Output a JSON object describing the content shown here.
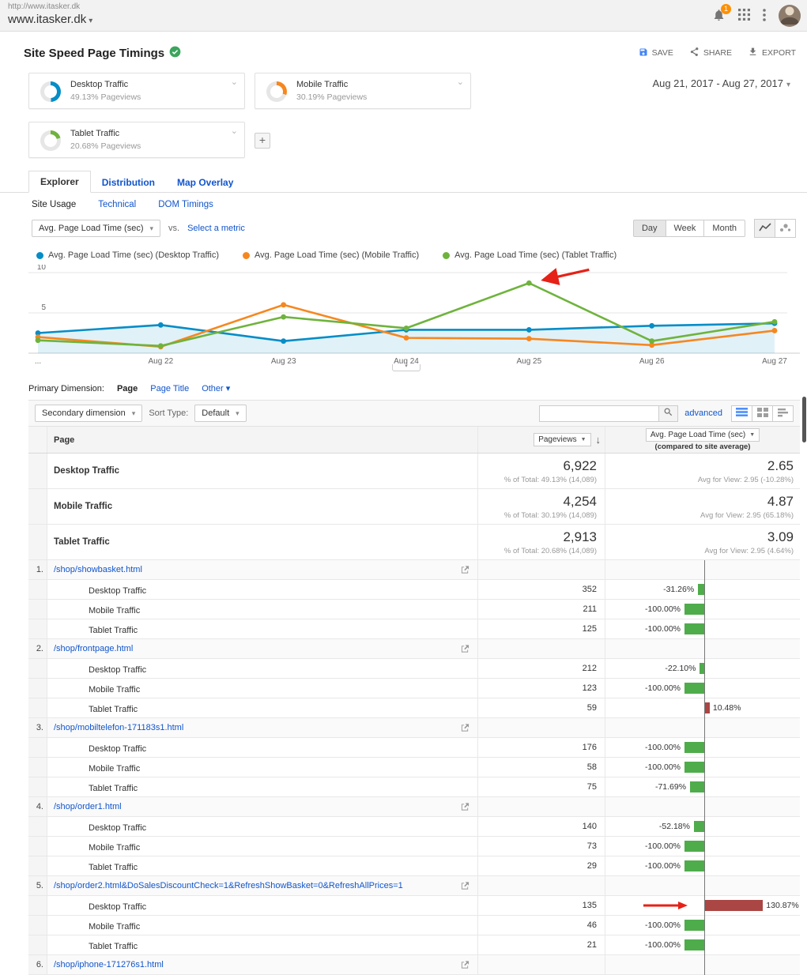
{
  "colors": {
    "desktop": "#058dc7",
    "mobile": "#f6871f",
    "tablet": "#6fb33d",
    "bar_negative": "#4fac4b",
    "bar_positive": "#aa4643",
    "annotation": "#e62117",
    "badge": "#ff8f00",
    "link": "#1155cc"
  },
  "topbar": {
    "url": "http://www.itasker.dk",
    "title": "www.itasker.dk",
    "badge_count": "1"
  },
  "report_header": {
    "title": "Site Speed Page Timings",
    "save": "SAVE",
    "share": "SHARE",
    "export": "EXPORT",
    "date_range": "Aug 21, 2017 - Aug 27, 2017"
  },
  "segments": [
    {
      "name": "Desktop Traffic",
      "detail": "49.13% Pageviews",
      "pct": 49.13
    },
    {
      "name": "Mobile Traffic",
      "detail": "30.19% Pageviews",
      "pct": 30.19
    },
    {
      "name": "Tablet Traffic",
      "detail": "20.68% Pageviews",
      "pct": 20.68
    }
  ],
  "tabs": [
    {
      "label": "Explorer",
      "active": true
    },
    {
      "label": "Distribution",
      "active": false
    },
    {
      "label": "Map Overlay",
      "active": false
    }
  ],
  "subtabs": [
    {
      "label": "Site Usage",
      "active": true
    },
    {
      "label": "Technical",
      "active": false
    },
    {
      "label": "DOM Timings",
      "active": false
    }
  ],
  "metric_bar": {
    "metric_selector": "Avg. Page Load Time (sec)",
    "vs_label": "vs.",
    "select_metric": "Select a metric",
    "granularity": [
      "Day",
      "Week",
      "Month"
    ],
    "active_granularity": "Day"
  },
  "chart_data": {
    "type": "line",
    "x": [
      "Aug 21",
      "Aug 22",
      "Aug 23",
      "Aug 24",
      "Aug 25",
      "Aug 26",
      "Aug 27"
    ],
    "x_tick_labels": [
      "...",
      "Aug 22",
      "Aug 23",
      "Aug 24",
      "Aug 25",
      "Aug 26",
      "Aug 27"
    ],
    "ylim": [
      0,
      10
    ],
    "yticks": [
      5,
      10
    ],
    "series": [
      {
        "name": "Avg. Page Load Time (sec) (Desktop Traffic)",
        "color_key": "desktop",
        "area": true,
        "values": [
          2.5,
          3.5,
          1.5,
          2.9,
          2.9,
          3.4,
          3.7
        ]
      },
      {
        "name": "Avg. Page Load Time (sec) (Mobile Traffic)",
        "color_key": "mobile",
        "area": false,
        "values": [
          2.0,
          0.8,
          6.0,
          1.9,
          1.8,
          1.0,
          2.8
        ]
      },
      {
        "name": "Avg. Page Load Time (sec) (Tablet Traffic)",
        "color_key": "tablet",
        "area": false,
        "values": [
          1.6,
          0.9,
          4.5,
          3.1,
          8.7,
          1.5,
          3.9
        ]
      }
    ],
    "annotation": {
      "type": "arrow",
      "target_series": "Tablet Traffic",
      "target_x": "Aug 25"
    }
  },
  "primary_dimension": {
    "label": "Primary Dimension:",
    "options": [
      {
        "label": "Page",
        "active": true
      },
      {
        "label": "Page Title",
        "active": false
      },
      {
        "label": "Other",
        "active": false,
        "caret": true
      }
    ]
  },
  "toolbar": {
    "secondary_dimension": "Secondary dimension",
    "sort_type_label": "Sort Type:",
    "sort_type_value": "Default",
    "search_value": "",
    "advanced": "advanced"
  },
  "table": {
    "headers": {
      "page": "Page",
      "pageviews": "Pageviews",
      "metric": "Avg. Page Load Time (sec)",
      "metric_note": "(compared to site average)"
    },
    "summary_rows": [
      {
        "name": "Desktop Traffic",
        "pageviews": "6,922",
        "pageviews_note": "% of Total: 49.13% (14,089)",
        "metric": "2.65",
        "metric_note": "Avg for View: 2.95 (-10.28%)"
      },
      {
        "name": "Mobile Traffic",
        "pageviews": "4,254",
        "pageviews_note": "% of Total: 30.19% (14,089)",
        "metric": "4.87",
        "metric_note": "Avg for View: 2.95 (65.18%)"
      },
      {
        "name": "Tablet Traffic",
        "pageviews": "2,913",
        "pageviews_note": "% of Total: 20.68% (14,089)",
        "metric": "3.09",
        "metric_note": "Avg for View: 2.95 (4.64%)"
      }
    ],
    "rows": [
      {
        "index": "1.",
        "url": "/shop/showbasket.html",
        "segments": [
          {
            "name": "Desktop Traffic",
            "pageviews": "352",
            "pct": -31.26,
            "label": "-31.26%"
          },
          {
            "name": "Mobile Traffic",
            "pageviews": "211",
            "pct": -100.0,
            "label": "-100.00%"
          },
          {
            "name": "Tablet Traffic",
            "pageviews": "125",
            "pct": -100.0,
            "label": "-100.00%"
          }
        ]
      },
      {
        "index": "2.",
        "url": "/shop/frontpage.html",
        "segments": [
          {
            "name": "Desktop Traffic",
            "pageviews": "212",
            "pct": -22.1,
            "label": "-22.10%"
          },
          {
            "name": "Mobile Traffic",
            "pageviews": "123",
            "pct": -100.0,
            "label": "-100.00%"
          },
          {
            "name": "Tablet Traffic",
            "pageviews": "59",
            "pct": 10.48,
            "label": "10.48%"
          }
        ]
      },
      {
        "index": "3.",
        "url": "/shop/mobiltelefon-171183s1.html",
        "segments": [
          {
            "name": "Desktop Traffic",
            "pageviews": "176",
            "pct": -100.0,
            "label": "-100.00%"
          },
          {
            "name": "Mobile Traffic",
            "pageviews": "58",
            "pct": -100.0,
            "label": "-100.00%"
          },
          {
            "name": "Tablet Traffic",
            "pageviews": "75",
            "pct": -71.69,
            "label": "-71.69%"
          }
        ]
      },
      {
        "index": "4.",
        "url": "/shop/order1.html",
        "segments": [
          {
            "name": "Desktop Traffic",
            "pageviews": "140",
            "pct": -52.18,
            "label": "-52.18%"
          },
          {
            "name": "Mobile Traffic",
            "pageviews": "73",
            "pct": -100.0,
            "label": "-100.00%"
          },
          {
            "name": "Tablet Traffic",
            "pageviews": "29",
            "pct": -100.0,
            "label": "-100.00%"
          }
        ]
      },
      {
        "index": "5.",
        "url": "/shop/order2.html&DoSalesDiscountCheck=1&RefreshShowBasket=0&RefreshAllPrices=1",
        "segments": [
          {
            "name": "Desktop Traffic",
            "pageviews": "135",
            "pct": 130.87,
            "label": "130.87%",
            "annotation_arrow": true
          },
          {
            "name": "Mobile Traffic",
            "pageviews": "46",
            "pct": -100.0,
            "label": "-100.00%"
          },
          {
            "name": "Tablet Traffic",
            "pageviews": "21",
            "pct": -100.0,
            "label": "-100.00%"
          }
        ]
      },
      {
        "index": "6.",
        "url": "/shop/iphone-171276s1.html",
        "segments": []
      }
    ]
  }
}
